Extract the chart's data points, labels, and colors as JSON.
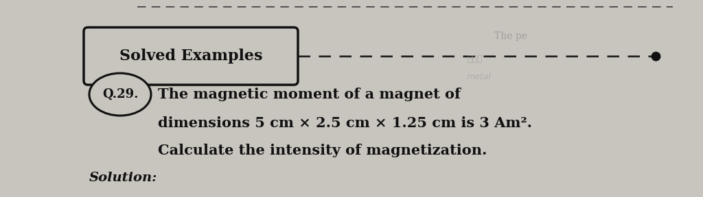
{
  "bg_color": "#c8c4be",
  "title_box_text": "Solved Examples",
  "q_number": "Q.29.",
  "q_text_line1": "The magnetic moment of a magnet of",
  "q_text_line2": "dimensions 5 cm × 2.5 cm × 1.25 cm is 3 Am².",
  "q_text_line3": "Calculate the intensity of magnetization.",
  "solution_text": "Solution:",
  "font_size_title": 16,
  "font_size_q": 15,
  "font_size_solution": 14,
  "font_size_ghost": 10,
  "top_dashed_color": "#555555",
  "box_edge_color": "#111111",
  "text_color": "#111111",
  "ghost_color": "#999999",
  "dot_color": "#111111"
}
